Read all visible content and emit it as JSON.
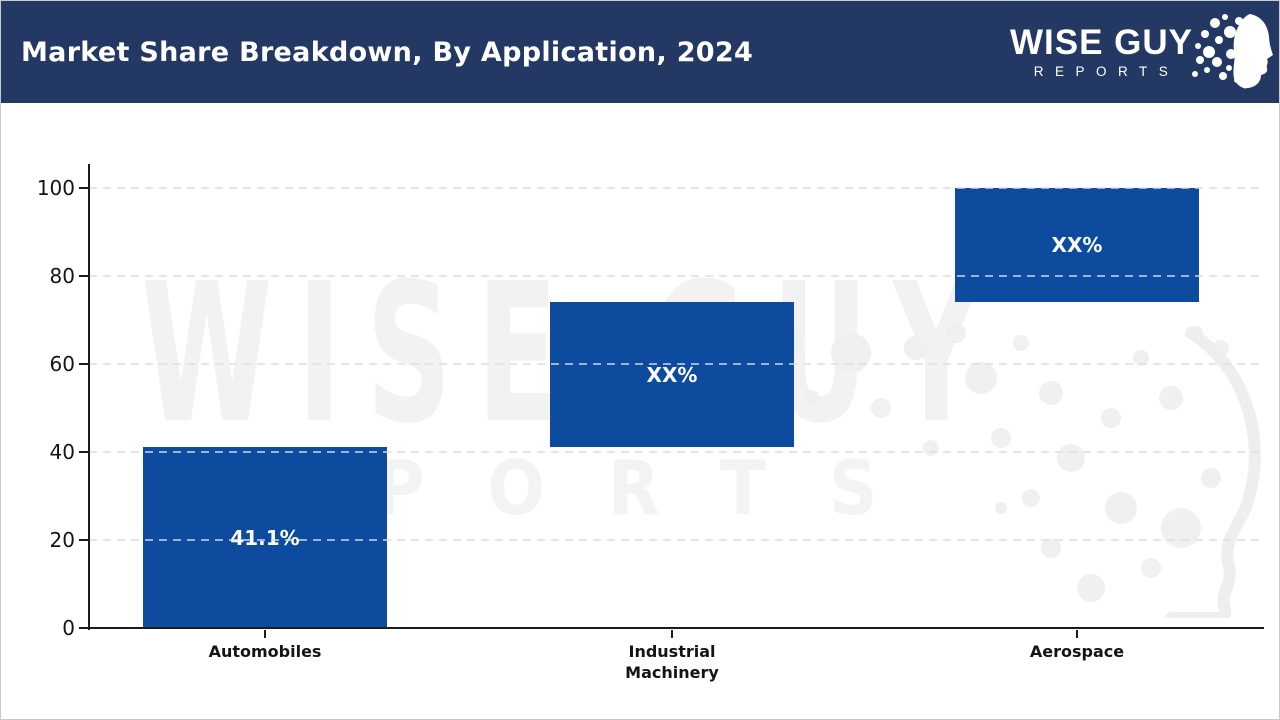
{
  "header": {
    "title": "Market Share Breakdown, By Application, 2024",
    "bg_color": "#243864",
    "logo": {
      "line1": "WISE GUY",
      "line2": "REPORTS"
    }
  },
  "watermark": {
    "line1": "WISE GUY",
    "line2": "REPORTS"
  },
  "chart_data": {
    "type": "bar",
    "subtype": "waterfall-segments",
    "title": "Market Share Breakdown, By Application, 2024",
    "categories": [
      "Automobiles",
      "Industrial Machinery",
      "Aerospace"
    ],
    "segments": [
      {
        "category": "Automobiles",
        "start": 0,
        "end": 41.1,
        "label": "41.1%"
      },
      {
        "category": "Industrial Machinery",
        "start": 41.1,
        "end": 74.1,
        "label": "XX%"
      },
      {
        "category": "Aerospace",
        "start": 74.1,
        "end": 100,
        "label": "XX%"
      }
    ],
    "xlabel": "",
    "ylabel": "",
    "ylim": [
      0,
      104
    ],
    "yticks": [
      0,
      20,
      40,
      60,
      80,
      100
    ],
    "grid": "horizontal-dashed",
    "grid_above_bars": true,
    "legend": "none",
    "bar_color": "#0C4B9D",
    "bar_label_color": "#ffffff",
    "axis_color": "#1c1c1c"
  }
}
